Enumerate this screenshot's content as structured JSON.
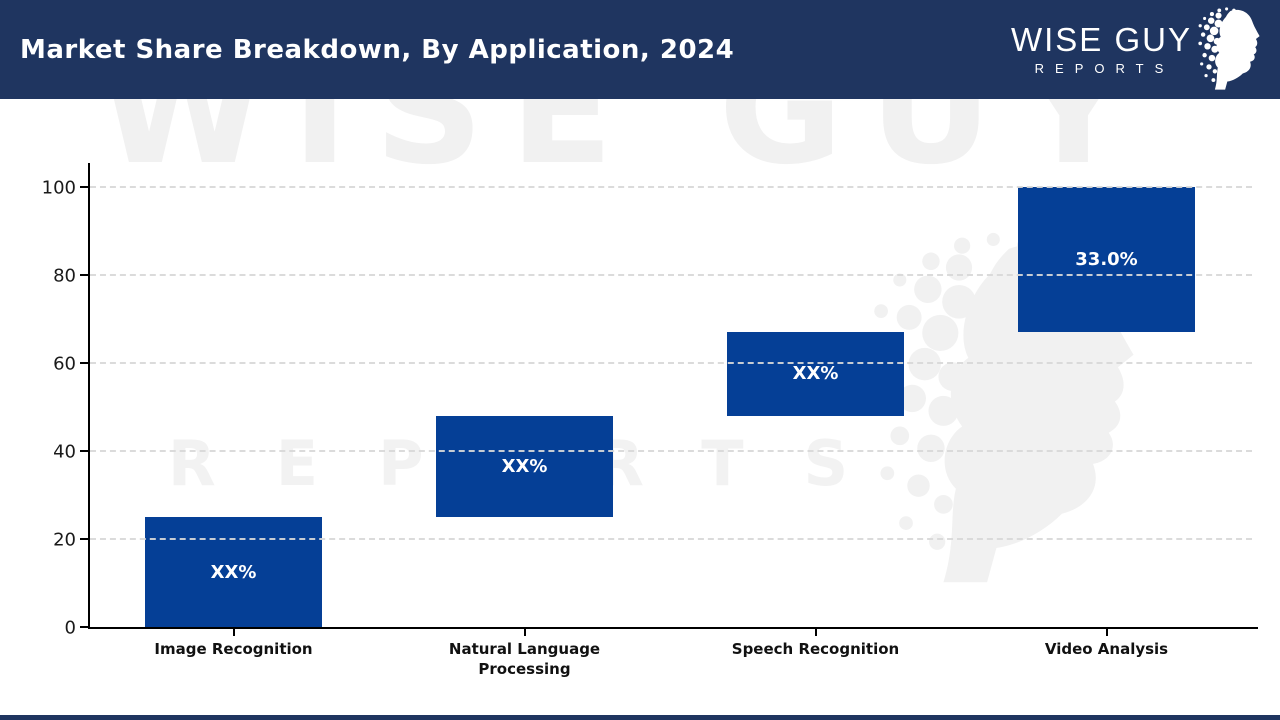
{
  "header": {
    "title": "Market Share Breakdown, By Application, 2024",
    "logo": {
      "line1": "WISE GUY",
      "line2": "REPORTS"
    }
  },
  "watermark": {
    "line1": "WISE GUY",
    "line2": "REPORTS"
  },
  "chart_data": {
    "type": "bar",
    "subtype": "waterfall",
    "title": "Market Share Breakdown, By Application, 2024",
    "xlabel": "",
    "ylabel": "",
    "ylim": [
      0,
      105
    ],
    "yticks": [
      0,
      20,
      40,
      60,
      80,
      100
    ],
    "grid": "horizontal dashed, drawn above bars",
    "legend": "none",
    "categories": [
      "Image Recognition",
      "Natural Language\nProcessing",
      "Speech Recognition",
      "Video Analysis"
    ],
    "bars": [
      {
        "category": "Image Recognition",
        "start": 0,
        "end": 25,
        "value": 25,
        "label": "XX%"
      },
      {
        "category": "Natural Language\nProcessing",
        "start": 25,
        "end": 48,
        "value": 23,
        "label": "XX%"
      },
      {
        "category": "Speech Recognition",
        "start": 48,
        "end": 67,
        "value": 19,
        "label": "XX%"
      },
      {
        "category": "Video Analysis",
        "start": 67,
        "end": 100,
        "value": 33,
        "label": "33.0%"
      }
    ]
  },
  "colors": {
    "header_bg": "#1f3560",
    "bar_fill": "#053f96",
    "bar_label_text": "#ffffff",
    "grid_line": "#d8d8d8",
    "axis_line": "#000000",
    "watermark": "#f1f1f1"
  }
}
